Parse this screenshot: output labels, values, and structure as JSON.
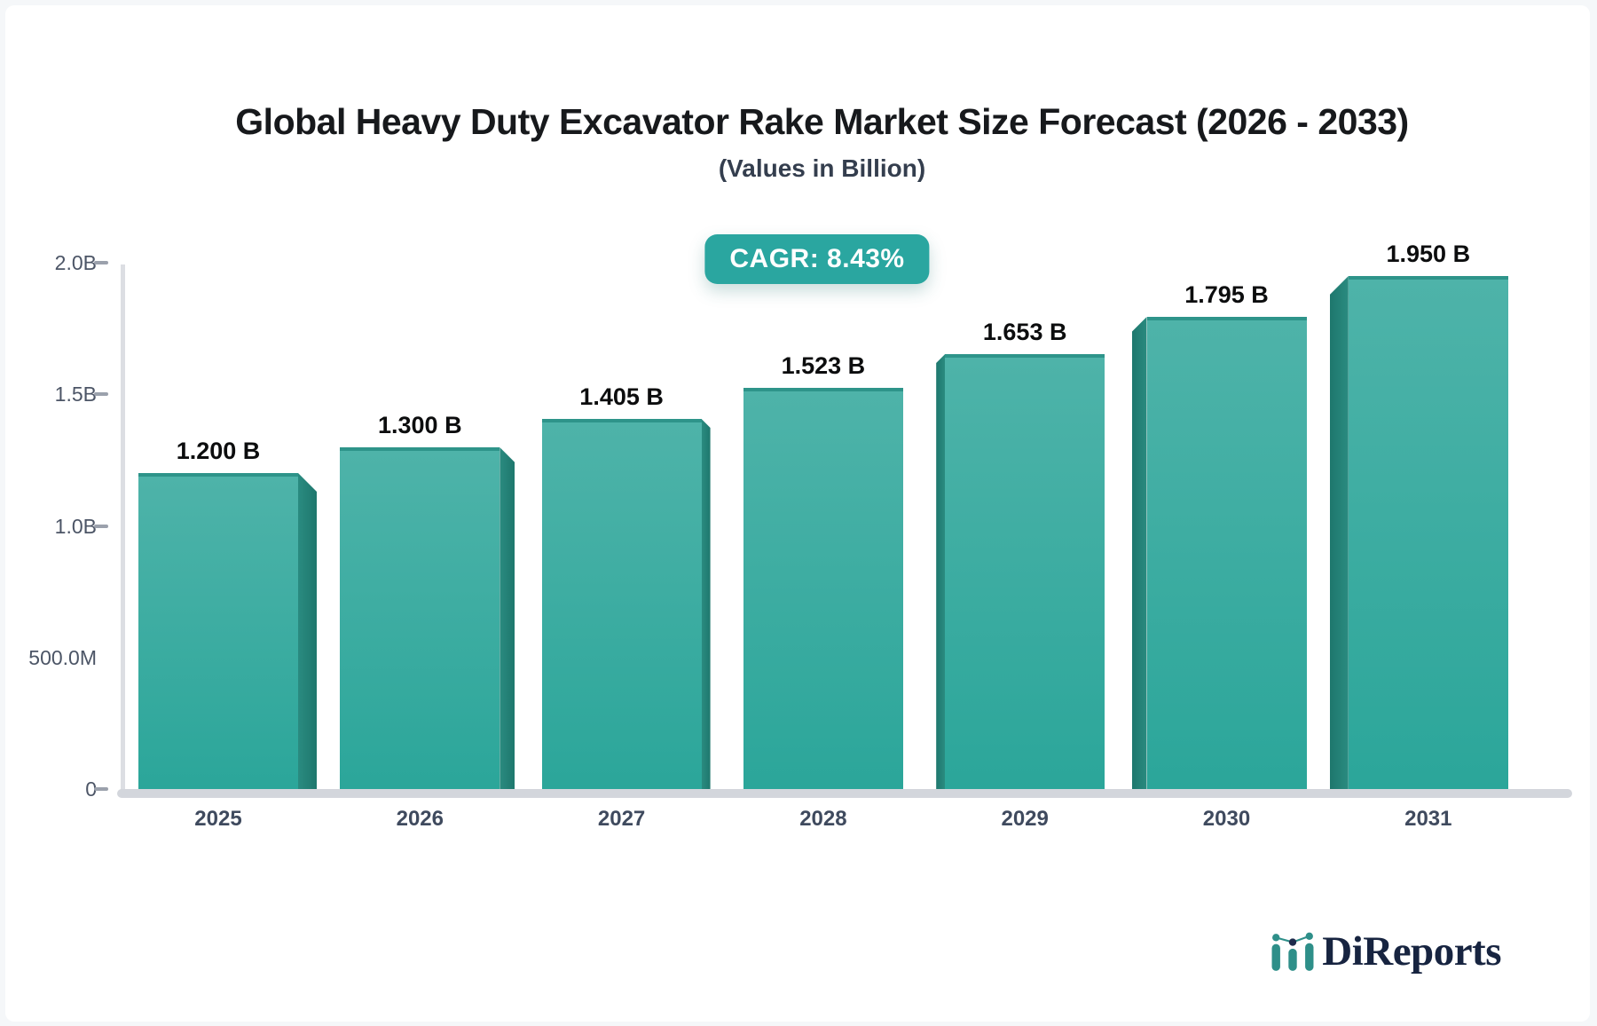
{
  "page": {
    "background": "#f5f7f9",
    "card_background": "#ffffff"
  },
  "header": {
    "title": "Global Heavy Duty Excavator Rake Market Size Forecast (2026 - 2033)",
    "subtitle": "(Values in Billion)"
  },
  "cagr_badge": {
    "label": "CAGR: 8.43%",
    "background": "#2aa6a0",
    "text_color": "#ffffff"
  },
  "chart_data": {
    "type": "bar",
    "title": "Global Heavy Duty Excavator Rake Market Size Forecast (2026 - 2033)",
    "subtitle": "(Values in Billion)",
    "cagr": "8.43%",
    "categories": [
      "2025",
      "2026",
      "2027",
      "2028",
      "2029",
      "2030",
      "2031"
    ],
    "values": [
      1.2,
      1.3,
      1.405,
      1.523,
      1.653,
      1.795,
      1.95
    ],
    "value_labels": [
      "1.200 B",
      "1.300 B",
      "1.405 B",
      "1.523 B",
      "1.653 B",
      "1.795 B",
      "1.950 B"
    ],
    "value_unit": "B",
    "xlabel": "",
    "ylabel": "",
    "ylim": [
      0,
      2.0
    ],
    "y_ticks": [
      {
        "label": "2.0B",
        "value": 2.0,
        "tick": true
      },
      {
        "label": "1.5B",
        "value": 1.5,
        "tick": true
      },
      {
        "label": "1.0B",
        "value": 1.0,
        "tick": true
      },
      {
        "label": "500.0M",
        "value": 0.5,
        "tick": false
      },
      {
        "label": "0",
        "value": 0.0,
        "tick": true
      }
    ],
    "grid": false,
    "legend": false,
    "style_3d": true,
    "bar_style": {
      "face_top": "#4eb3a9",
      "face_bottom": "#2ba69a",
      "face_edge": "#2e948a",
      "side_dark": "#1e776d",
      "side_light": "#2a8b80"
    },
    "axis_color": "#d6d9de",
    "tick_color": "#9ba1ac",
    "y_label_color": "#4c5566",
    "x_label_color": "#3f4a5e",
    "value_label_color": "#0c0d0e"
  },
  "logo": {
    "text": "DiReports",
    "icon": "bar-chart-trend-icon",
    "teal": "#2e8f89",
    "navy": "#1d2b4c",
    "text_color": "#172440"
  }
}
